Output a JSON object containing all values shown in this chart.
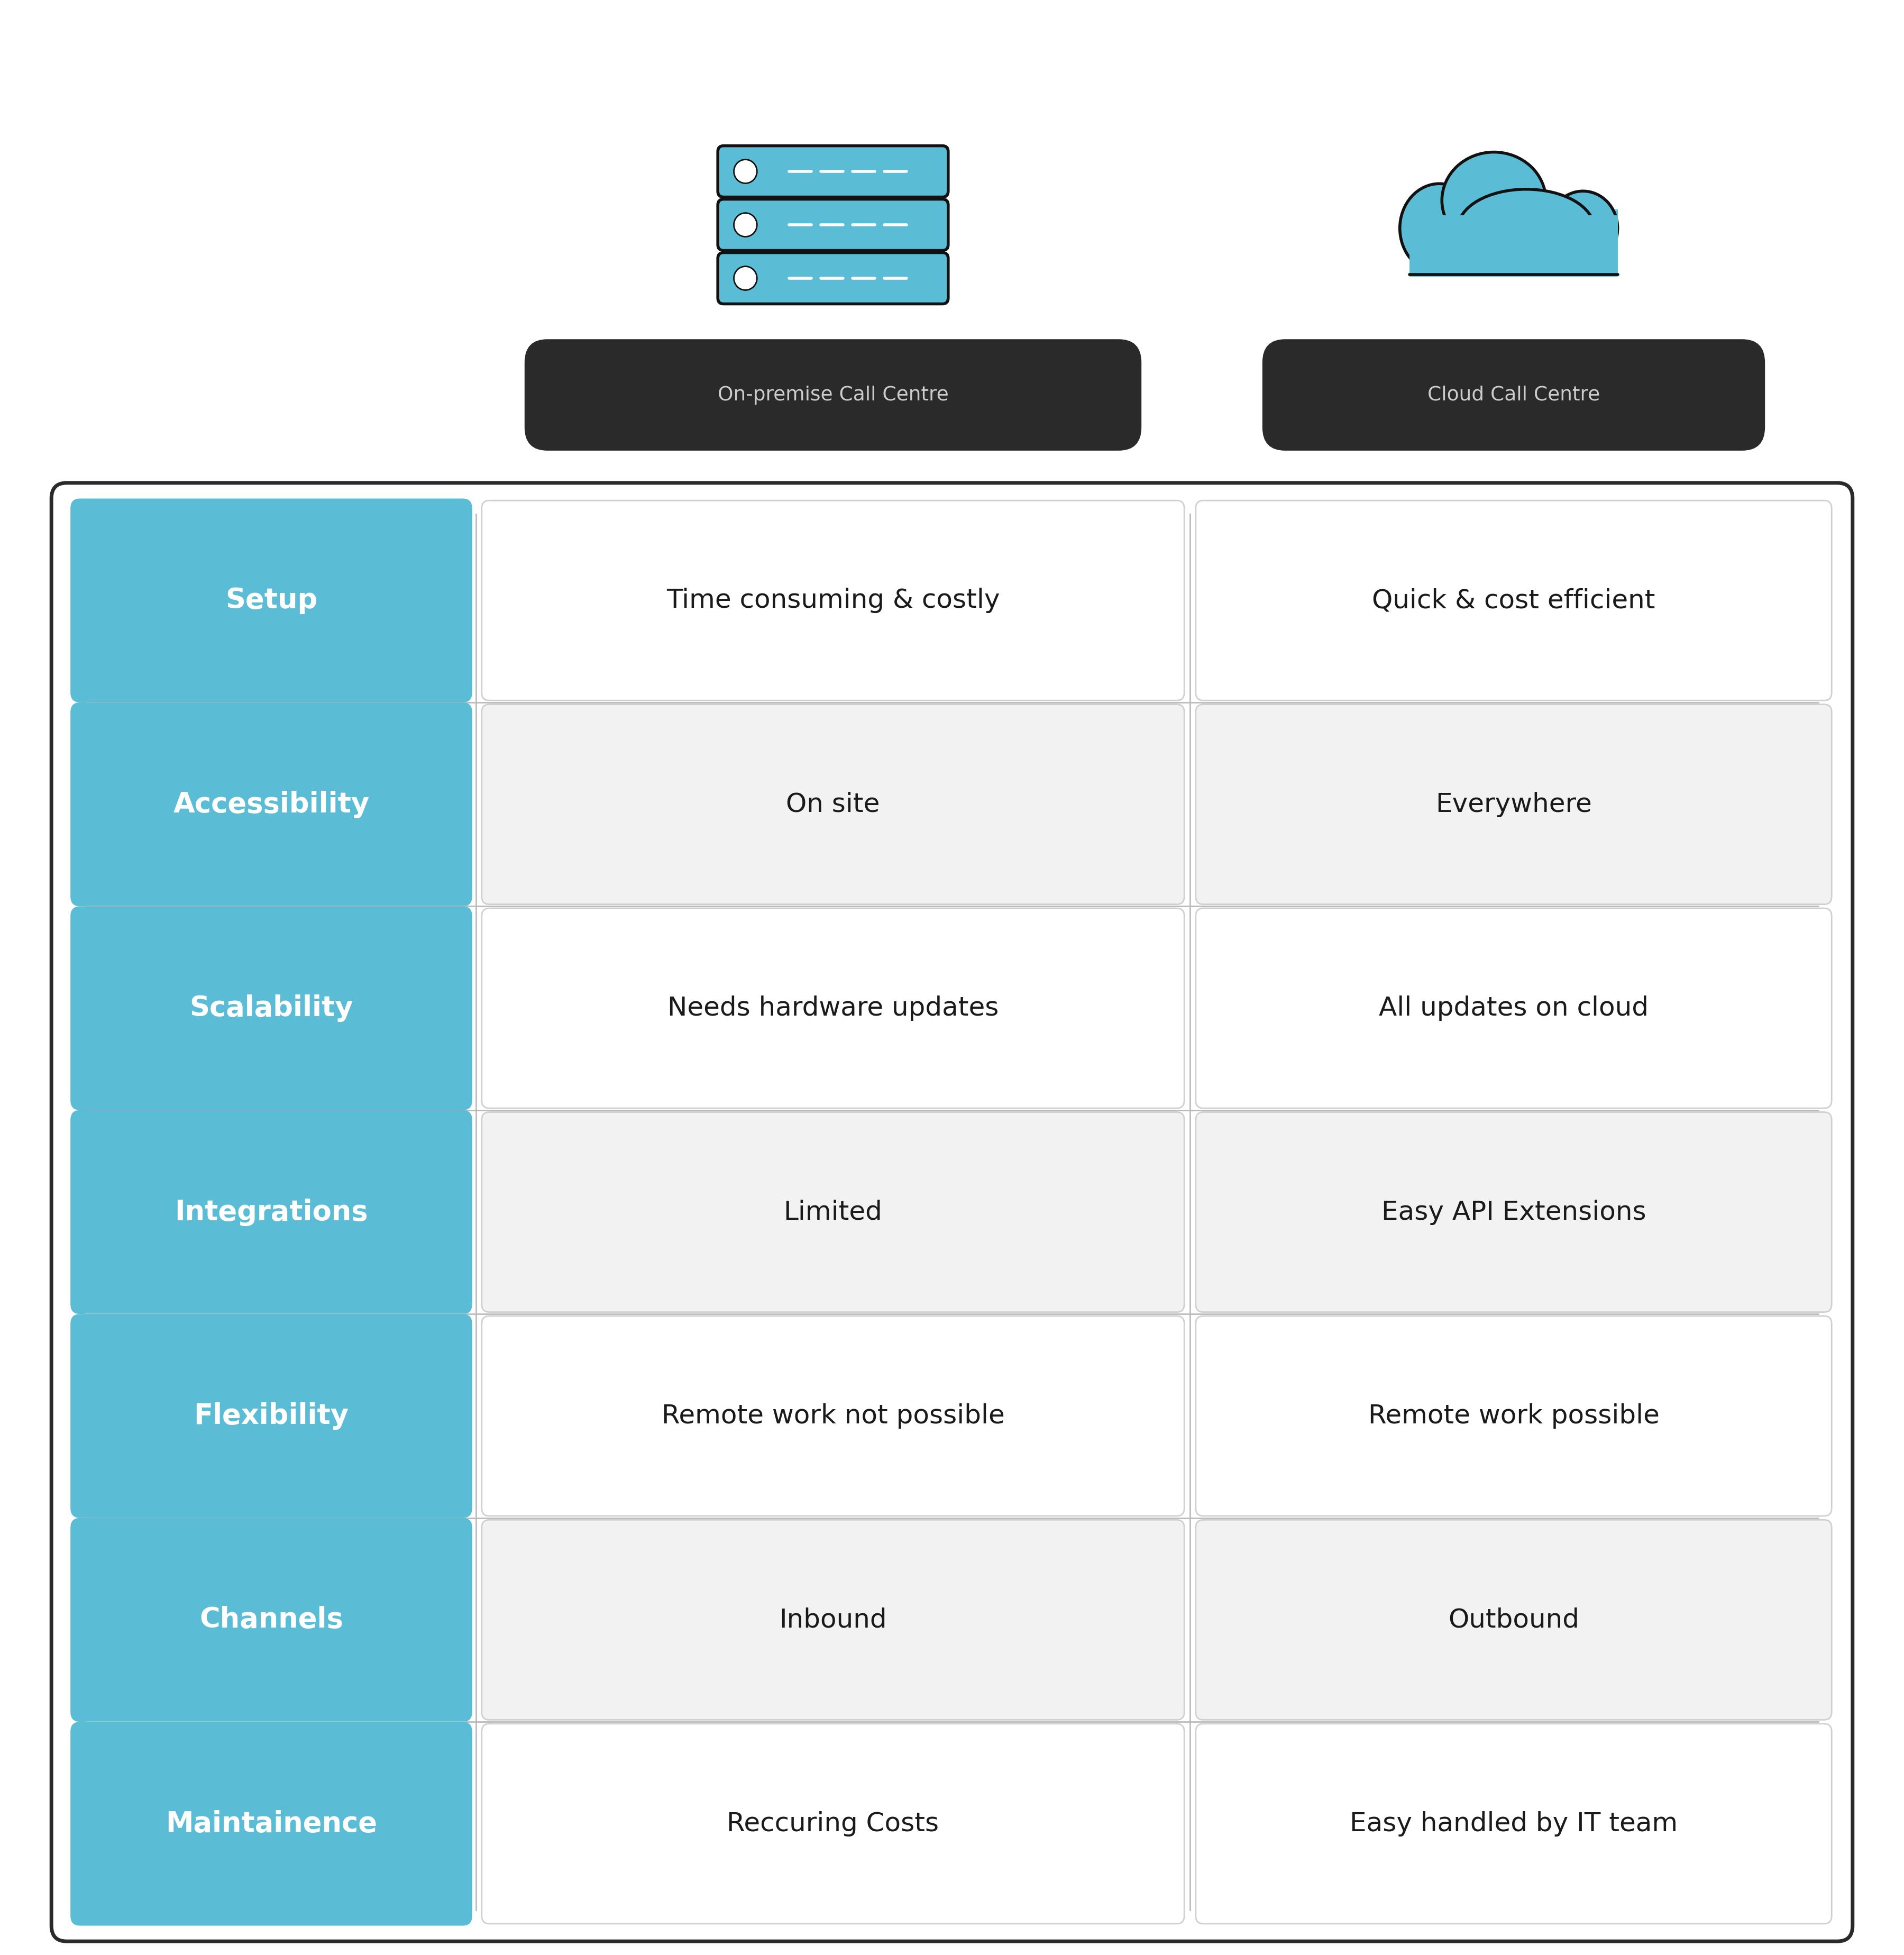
{
  "background_color": "#ffffff",
  "table_bg": "#ffffff",
  "header_col1_label": "On-premise Call Centre",
  "header_col2_label": "Cloud Call Centre",
  "row_label_color": "#5bbcd6",
  "row_label_text_color": "#ffffff",
  "cell_bg_white": "#ffffff",
  "cell_bg_light": "#f2f2f2",
  "rows": [
    {
      "label": "Setup",
      "col1": "Time consuming & costly",
      "col2": "Quick & cost efficient"
    },
    {
      "label": "Accessibility",
      "col1": "On site",
      "col2": "Everywhere"
    },
    {
      "label": "Scalability",
      "col1": "Needs hardware updates",
      "col2": "All updates on cloud"
    },
    {
      "label": "Integrations",
      "col1": "Limited",
      "col2": "Easy API Extensions"
    },
    {
      "label": "Flexibility",
      "col1": "Remote work not possible",
      "col2": "Remote work possible"
    },
    {
      "label": "Channels",
      "col1": "Inbound",
      "col2": "Outbound"
    },
    {
      "label": "Maintainence",
      "col1": "Reccuring Costs",
      "col2": "Easy handled by IT team"
    }
  ],
  "icon_color": "#5bbcd6",
  "table_border_color": "#2a2a2a",
  "pill_bg": "#2a2a2a",
  "pill_text_color": "#cccccc",
  "label_font_size": 38,
  "cell_font_size": 36,
  "header_font_size": 30
}
